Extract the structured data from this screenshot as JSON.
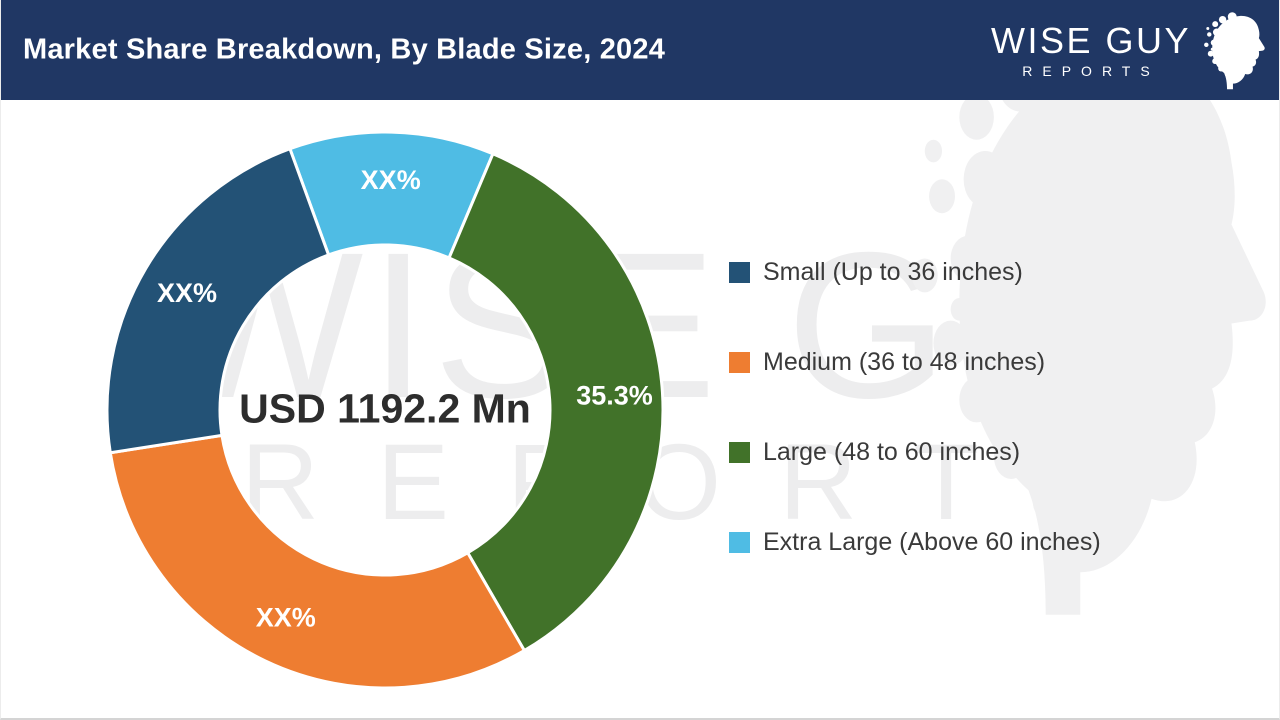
{
  "header": {
    "title": "Market Share Breakdown, By Blade Size, 2024",
    "bg_color": "#203764",
    "logo": {
      "name": "WISE GUY",
      "sub": "REPORTS"
    }
  },
  "watermark": {
    "big_text": "WISE GUY",
    "sub_text": "REPORTS"
  },
  "chart_data": {
    "type": "pie",
    "subtype": "donut",
    "title": "Market Share Breakdown, By Blade Size, 2024",
    "center_label": "USD 1192.2 Mn",
    "start_angle_deg": -20,
    "direction": "clockwise",
    "legend_position": "right",
    "slices": [
      {
        "name": "Extra Large (Above 60 inches)",
        "pct": 11.9,
        "label": "XX%",
        "color": "#4fbce4"
      },
      {
        "name": "Large (48 to 60 inches)",
        "pct": 35.3,
        "label": "35.3%",
        "color": "#417229"
      },
      {
        "name": "Medium (36 to 48 inches)",
        "pct": 30.9,
        "label": "XX%",
        "color": "#ee7d31"
      },
      {
        "name": "Small (Up to 36 inches)",
        "pct": 21.9,
        "label": "XX%",
        "color": "#235276"
      }
    ]
  },
  "legend": {
    "items": [
      {
        "label": "Small (Up to 36 inches)",
        "color": "#235276"
      },
      {
        "label": "Medium (36 to 48 inches)",
        "color": "#ee7d31"
      },
      {
        "label": "Large (48 to 60 inches)",
        "color": "#417229"
      },
      {
        "label": "Extra Large (Above 60 inches)",
        "color": "#4fbce4"
      }
    ]
  }
}
